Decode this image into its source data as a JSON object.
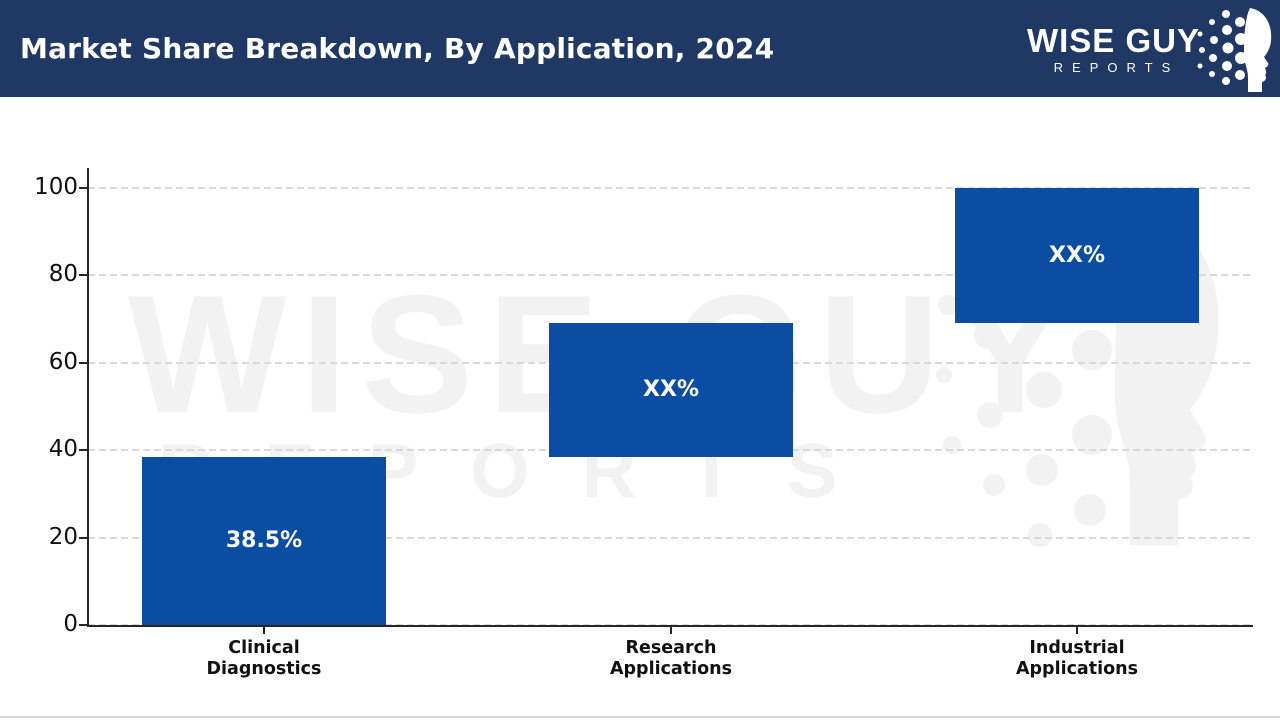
{
  "header": {
    "title": "Market Share Breakdown, By Application, 2024",
    "logo": {
      "line1": "WISE GUY",
      "line2": "REPORTS"
    }
  },
  "watermark": {
    "line1": "WISE GUY",
    "line2": "REPORTS"
  },
  "chart_data": {
    "type": "bar",
    "subtype": "floating-waterfall",
    "title": "Market Share Breakdown, By Application, 2024",
    "categories": [
      "Clinical\nDiagnostics",
      "Research\nApplications",
      "Industrial\nApplications"
    ],
    "bars": [
      {
        "category": "Clinical Diagnostics",
        "start": 0,
        "end": 38.5,
        "value_label": "38.5%"
      },
      {
        "category": "Research Applications",
        "start": 38.5,
        "end": 69.2,
        "value_label": "XX%"
      },
      {
        "category": "Industrial Applications",
        "start": 69.2,
        "end": 100,
        "value_label": "XX%"
      }
    ],
    "ylim": [
      0,
      100
    ],
    "yticks": [
      0,
      20,
      40,
      60,
      80,
      100
    ],
    "xlabel": "",
    "ylabel": "",
    "grid": "horizontal-dashed",
    "legend": "none"
  },
  "colors": {
    "header_bg": "#1f3864",
    "bar": "#0b4da2",
    "bar_label": "#ffffff",
    "grid": "#d9d9d9",
    "axis": "#262626",
    "watermark": "#f2f2f2"
  }
}
